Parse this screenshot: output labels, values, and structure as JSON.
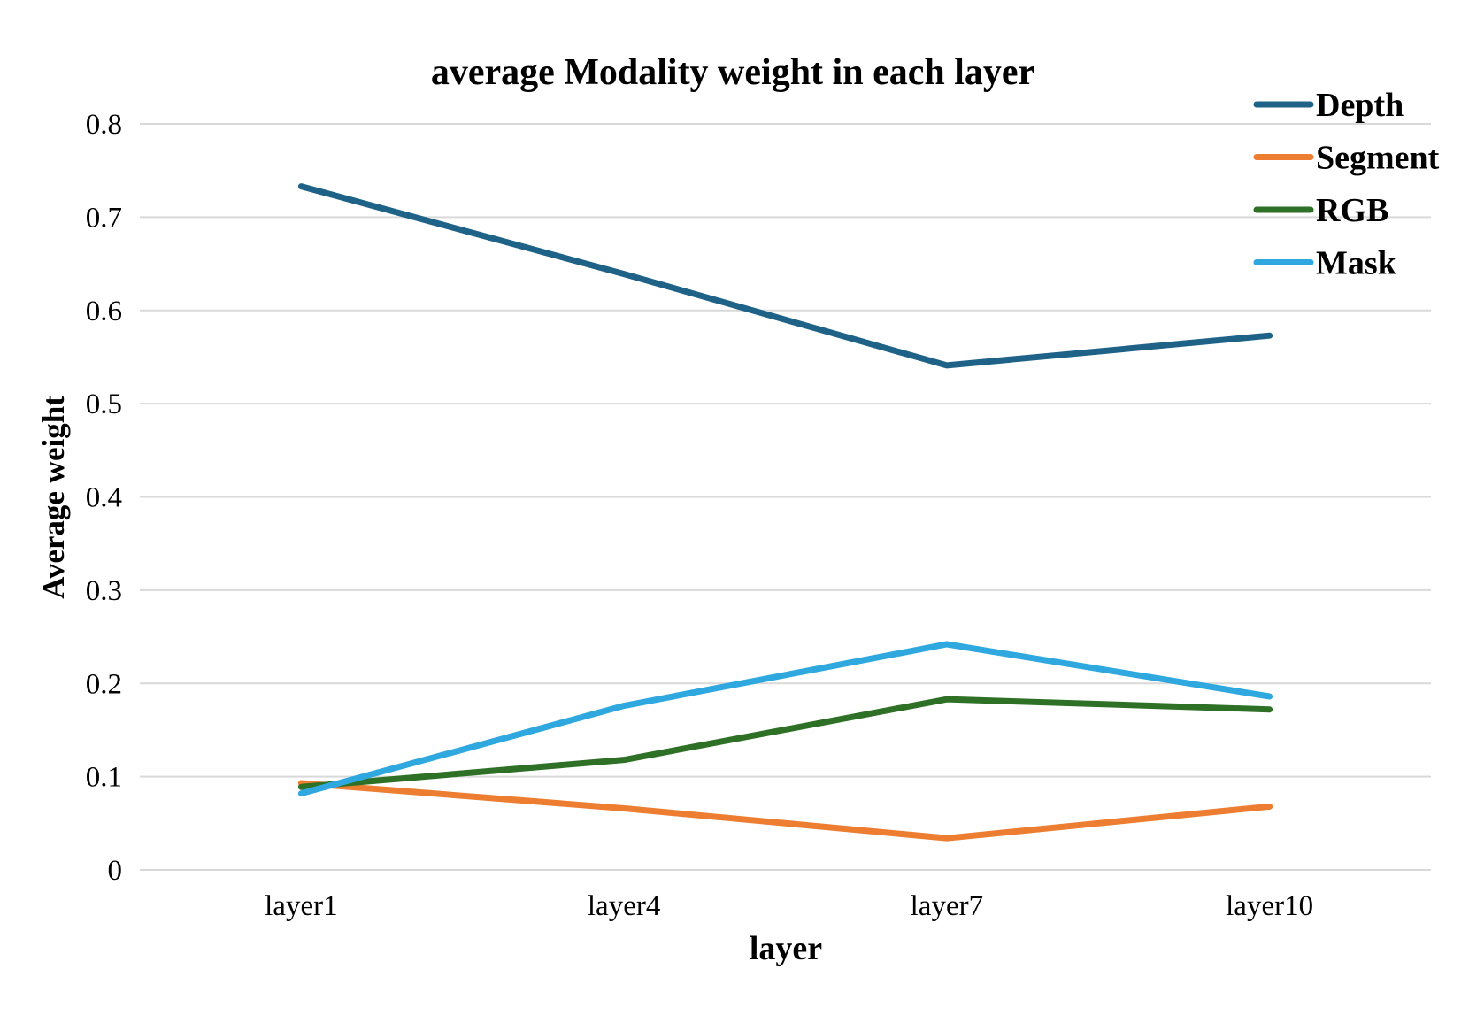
{
  "chart_data": {
    "type": "line",
    "title": "average Modality weight in each layer",
    "xlabel": "layer",
    "ylabel": "Average weight",
    "categories": [
      "layer1",
      "layer4",
      "layer7",
      "layer10"
    ],
    "series": [
      {
        "name": "Depth",
        "color": "#1F6287",
        "values": [
          0.733,
          0.639,
          0.541,
          0.573
        ]
      },
      {
        "name": "Segment",
        "color": "#ED7D31",
        "values": [
          0.093,
          0.066,
          0.034,
          0.068
        ]
      },
      {
        "name": "RGB",
        "color": "#2D7026",
        "values": [
          0.089,
          0.118,
          0.183,
          0.172
        ]
      },
      {
        "name": "Mask",
        "color": "#2FA8DF",
        "values": [
          0.082,
          0.176,
          0.242,
          0.186
        ]
      }
    ],
    "ylim": [
      0,
      0.8
    ],
    "ytick_step": 0.1,
    "ytick_labels": [
      "0",
      "0.1",
      "0.2",
      "0.3",
      "0.4",
      "0.5",
      "0.6",
      "0.7",
      "0.8"
    ],
    "grid": true,
    "gridline_color": "#D9D9D9",
    "background": "#FFFFFF",
    "legend_position": "top-right",
    "line_width": 7,
    "text_color": "#000000"
  }
}
